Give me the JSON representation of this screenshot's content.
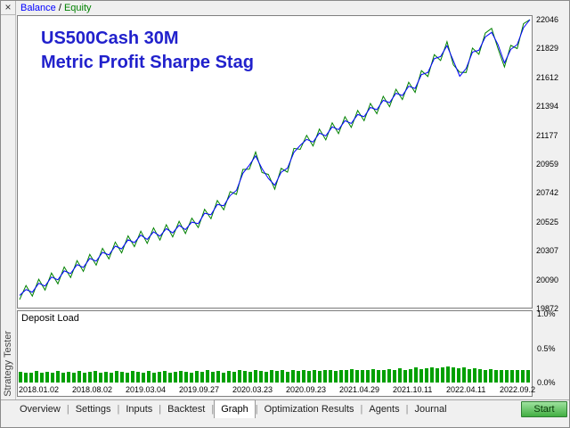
{
  "window": {
    "close_label": "×",
    "panel_title": "Strategy Tester"
  },
  "legend": {
    "balance_label": "Balance",
    "separator": " / ",
    "equity_label": "Equity"
  },
  "chart_title": {
    "line1": "US500Cash 30M",
    "line2": "Metric Profit Sharpe Stag"
  },
  "colors": {
    "balance": "#0000ff",
    "equity": "#008000",
    "title": "#2121cc",
    "bars": "#00a000",
    "start_button": "#4caf50"
  },
  "y_axis": {
    "labels": [
      "22046",
      "21829",
      "21612",
      "21394",
      "21177",
      "20959",
      "20742",
      "20525",
      "20307",
      "20090",
      "19872"
    ]
  },
  "deposit_panel": {
    "label": "Deposit Load",
    "pct_labels": [
      "1.0%",
      "0.5%",
      "0.0%"
    ]
  },
  "x_axis": {
    "labels": [
      "2018.01.02",
      "2018.08.02",
      "2019.03.04",
      "2019.09.27",
      "2020.03.23",
      "2020.09.23",
      "2021.04.29",
      "2021.10.11",
      "2022.04.11",
      "2022.09.2"
    ]
  },
  "tabs": {
    "items": [
      "Overview",
      "Settings",
      "Inputs",
      "Backtest",
      "Graph",
      "Optimization Results",
      "Agents",
      "Journal"
    ],
    "active": "Graph",
    "start_label": "Start"
  },
  "chart_data": {
    "type": "line",
    "title": "US500Cash 30M Metric Profit Sharpe Stag",
    "xlabel": "",
    "ylabel": "",
    "ylim": [
      19872,
      22046
    ],
    "x_tick_labels": [
      "2018.01.02",
      "2018.08.02",
      "2019.03.04",
      "2019.09.27",
      "2020.03.23",
      "2020.09.23",
      "2021.04.29",
      "2021.10.11",
      "2022.04.11",
      "2022.09.2"
    ],
    "y_tick_labels": [
      22046,
      21829,
      21612,
      21394,
      21177,
      20959,
      20742,
      20525,
      20307,
      20090,
      19872
    ],
    "legend_position": "top-left",
    "grid": false,
    "series": [
      {
        "name": "Balance",
        "color": "#0000ff",
        "values": [
          19970,
          20015,
          19995,
          20062,
          20041,
          20109,
          20088,
          20155,
          20135,
          20202,
          20181,
          20249,
          20228,
          20295,
          20275,
          20342,
          20321,
          20389,
          20368,
          20424,
          20392,
          20449,
          20417,
          20473,
          20441,
          20498,
          20466,
          20522,
          20511,
          20589,
          20578,
          20655,
          20645,
          20722,
          20761,
          20889,
          20950,
          21020,
          20925,
          20851,
          20800,
          20897,
          20928,
          21047,
          21100,
          21145,
          21125,
          21192,
          21171,
          21239,
          21218,
          21285,
          21265,
          21332,
          21315,
          21385,
          21368,
          21439,
          21421,
          21492,
          21475,
          21545,
          21528,
          21632,
          21648,
          21752,
          21768,
          21850,
          21735,
          21620,
          21678,
          21802,
          21815,
          21915,
          21950,
          21857,
          21720,
          21822,
          21858,
          21985,
          22046
        ]
      },
      {
        "name": "Equity",
        "color": "#008000",
        "values": [
          19940,
          20045,
          19965,
          20092,
          20011,
          20139,
          20058,
          20185,
          20105,
          20232,
          20151,
          20279,
          20198,
          20325,
          20245,
          20372,
          20291,
          20419,
          20338,
          20454,
          20362,
          20479,
          20387,
          20503,
          20411,
          20528,
          20436,
          20552,
          20481,
          20619,
          20548,
          20685,
          20615,
          20752,
          20731,
          20919,
          20920,
          21050,
          20895,
          20881,
          20770,
          20927,
          20898,
          21077,
          21070,
          21175,
          21095,
          21222,
          21141,
          21269,
          21188,
          21315,
          21235,
          21362,
          21285,
          21415,
          21338,
          21469,
          21391,
          21522,
          21445,
          21575,
          21498,
          21662,
          21618,
          21782,
          21738,
          21880,
          21705,
          21650,
          21648,
          21832,
          21785,
          21945,
          21980,
          21827,
          21690,
          21852,
          21828,
          22015,
          22046
        ]
      }
    ],
    "deposit_load": {
      "name": "Deposit Load",
      "unit": "%",
      "ylim": [
        0.0,
        1.0
      ],
      "values": [
        0.16,
        0.14,
        0.15,
        0.17,
        0.14,
        0.16,
        0.15,
        0.17,
        0.15,
        0.16,
        0.14,
        0.17,
        0.15,
        0.16,
        0.17,
        0.14,
        0.16,
        0.15,
        0.17,
        0.16,
        0.15,
        0.17,
        0.16,
        0.14,
        0.17,
        0.15,
        0.16,
        0.17,
        0.15,
        0.16,
        0.17,
        0.16,
        0.15,
        0.17,
        0.16,
        0.18,
        0.16,
        0.17,
        0.15,
        0.17,
        0.16,
        0.18,
        0.17,
        0.16,
        0.18,
        0.17,
        0.16,
        0.18,
        0.17,
        0.18,
        0.16,
        0.18,
        0.17,
        0.19,
        0.17,
        0.18,
        0.17,
        0.19,
        0.18,
        0.17,
        0.19,
        0.18,
        0.2,
        0.18,
        0.19,
        0.18,
        0.2,
        0.19,
        0.18,
        0.2,
        0.19,
        0.21,
        0.19,
        0.2,
        0.22,
        0.2,
        0.21,
        0.23,
        0.21,
        0.22,
        0.24,
        0.22,
        0.21,
        0.22,
        0.2,
        0.21,
        0.2,
        0.19,
        0.2,
        0.19,
        0.18,
        0.19,
        0.18,
        0.19,
        0.18,
        0.19
      ]
    }
  }
}
